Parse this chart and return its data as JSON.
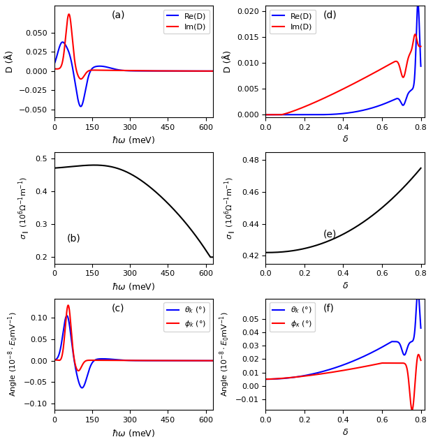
{
  "fig_width": 6.2,
  "fig_height": 6.36,
  "dpi": 100,
  "panel_a": {
    "label": "(a)",
    "xlabel": "$\\hbar\\omega$ (meV)",
    "ylabel": "D (Å)",
    "xlim": [
      0,
      630
    ],
    "ylim": [
      -0.06,
      0.085
    ],
    "xticks": [
      0,
      150,
      300,
      450,
      600
    ],
    "yticks": [
      -0.05,
      -0.025,
      0,
      0.025,
      0.05
    ],
    "legend_labels": [
      "Re(D)",
      "Im(D)"
    ],
    "line_colors": [
      "blue",
      "red"
    ]
  },
  "panel_b": {
    "label": "(b)",
    "xlabel": "$\\hbar\\omega$ (meV)",
    "ylabel": "$\\sigma_\\parallel$ (10$^6\\Omega^{-1}$m$^{-1}$)",
    "xlim": [
      0,
      630
    ],
    "ylim": [
      0.18,
      0.52
    ],
    "xticks": [
      0,
      150,
      300,
      450,
      600
    ],
    "yticks": [
      0.2,
      0.3,
      0.4,
      0.5
    ],
    "line_color": "black"
  },
  "panel_c": {
    "label": "(c)",
    "xlabel": "$\\hbar\\omega$ (meV)",
    "ylabel": "Angle (10$^{-8}\\cdot E_0$mV$^{-1}$)",
    "xlim": [
      0,
      630
    ],
    "ylim": [
      -0.115,
      0.145
    ],
    "xticks": [
      0,
      150,
      300,
      450,
      600
    ],
    "yticks": [
      -0.1,
      -0.05,
      0,
      0.05,
      0.1
    ],
    "legend_labels": [
      "$\\theta_k$ (°)",
      "$\\phi_k$ (°)"
    ],
    "line_colors": [
      "blue",
      "red"
    ]
  },
  "panel_d": {
    "label": "(d)",
    "xlabel": "$\\delta$",
    "ylabel": "D (Å)",
    "xlim": [
      0,
      0.82
    ],
    "ylim": [
      -0.0005,
      0.021
    ],
    "xticks": [
      0,
      0.2,
      0.4,
      0.6,
      0.8
    ],
    "yticks": [
      0,
      0.005,
      0.01,
      0.015,
      0.02
    ],
    "legend_labels": [
      "Re(D)",
      "Im(D)"
    ],
    "line_colors": [
      "blue",
      "red"
    ]
  },
  "panel_e": {
    "label": "(e)",
    "xlabel": "$\\delta$",
    "ylabel": "$\\sigma_\\parallel$ (10$^6\\Omega^{-1}$m$^{-1}$)",
    "xlim": [
      0,
      0.82
    ],
    "ylim": [
      0.415,
      0.485
    ],
    "xticks": [
      0,
      0.2,
      0.4,
      0.6,
      0.8
    ],
    "yticks": [
      0.42,
      0.44,
      0.46,
      0.48
    ],
    "line_color": "black"
  },
  "panel_f": {
    "label": "(f)",
    "xlabel": "$\\delta$",
    "ylabel": "Angle (10$^{-8}\\cdot E_0$mV$^{-1}$)",
    "xlim": [
      0,
      0.82
    ],
    "ylim": [
      -0.018,
      0.065
    ],
    "xticks": [
      0,
      0.2,
      0.4,
      0.6,
      0.8
    ],
    "yticks": [
      -0.01,
      0,
      0.01,
      0.02,
      0.03,
      0.04,
      0.05
    ],
    "legend_labels": [
      "$\\theta_k$ (°)",
      "$\\phi_\\kappa$ (°)"
    ],
    "line_colors": [
      "blue",
      "red"
    ]
  }
}
